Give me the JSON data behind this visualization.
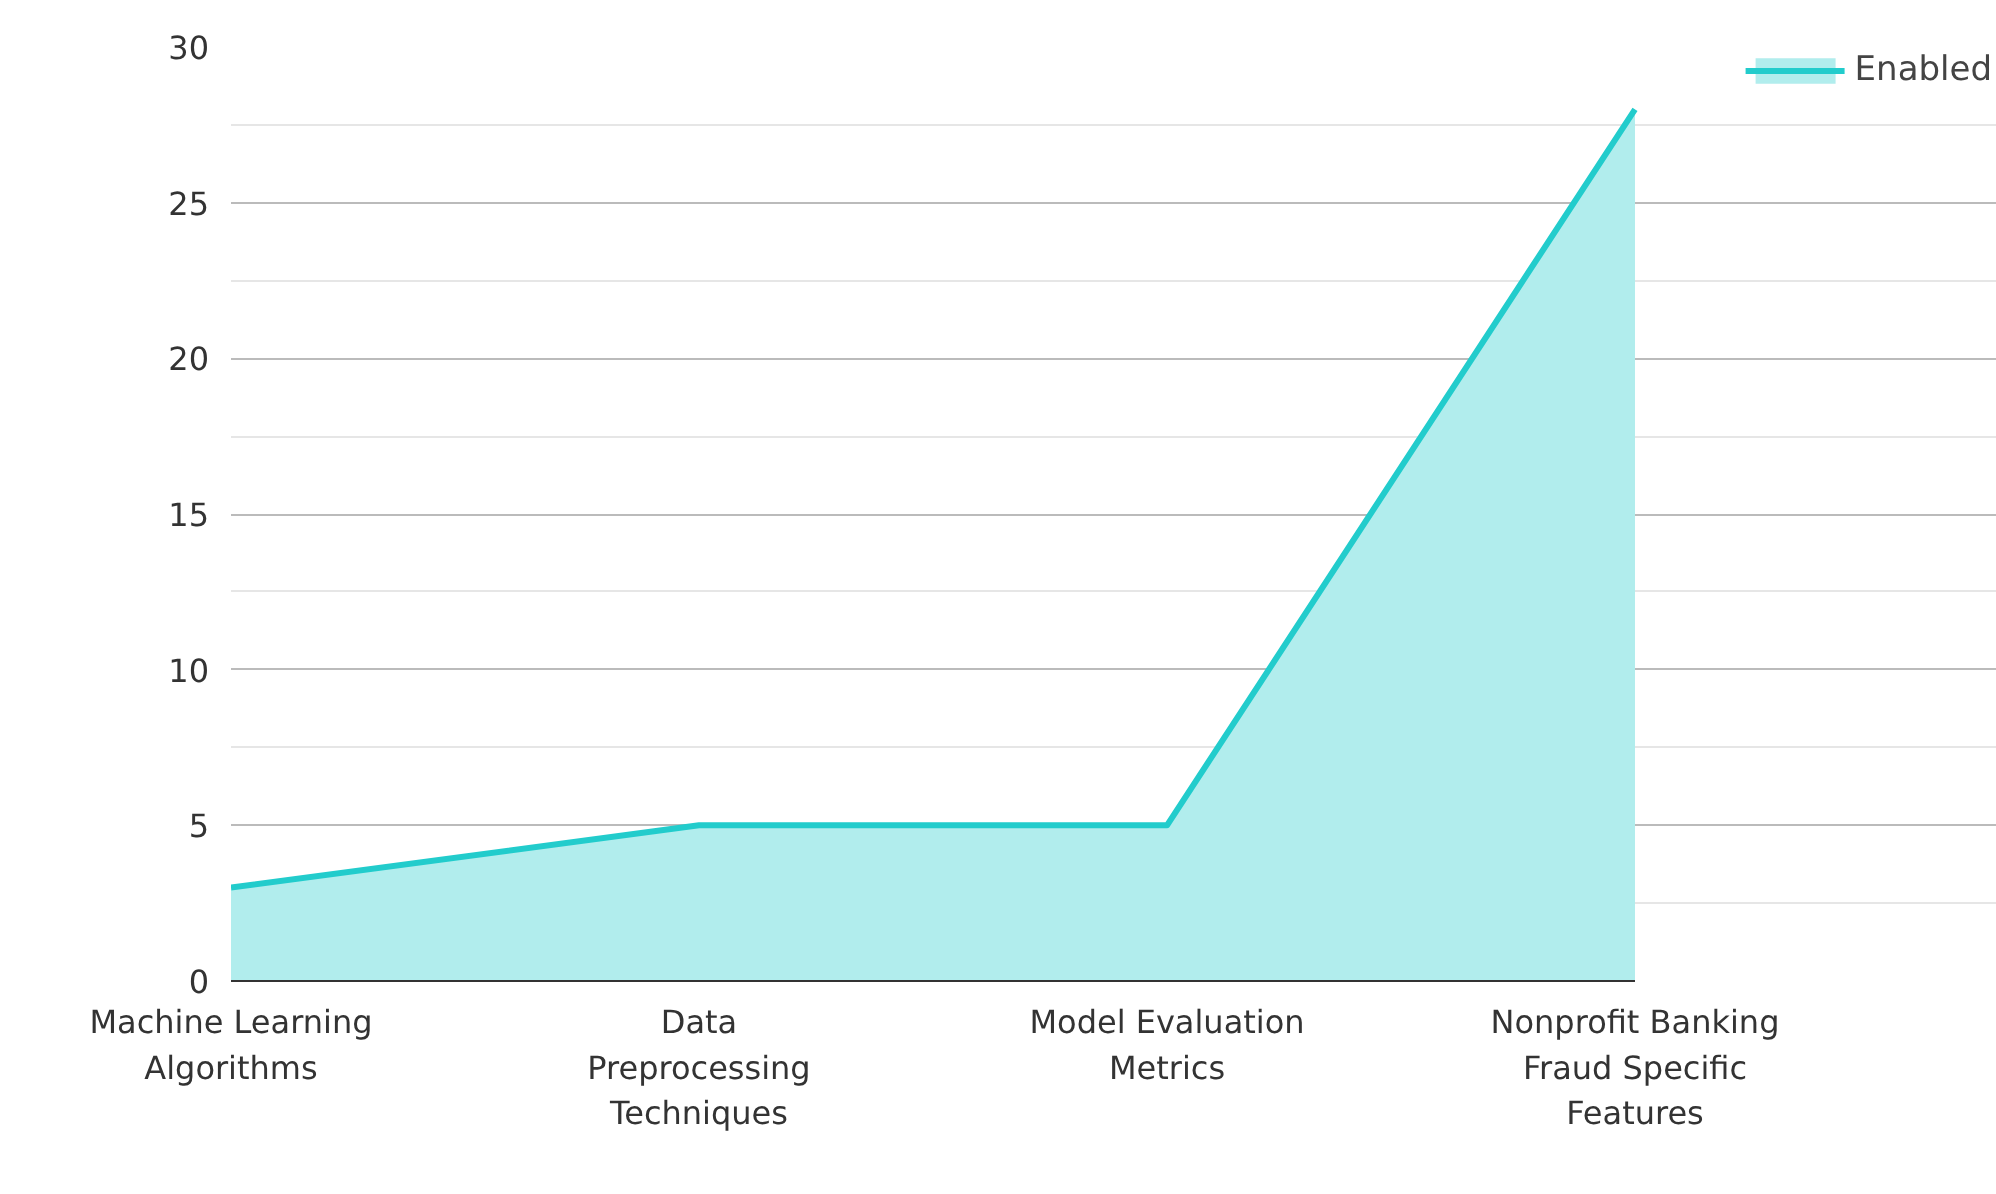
{
  "chart_data": {
    "type": "area",
    "categories": [
      "Machine Learning Algorithms",
      "Data Preprocessing Techniques",
      "Model Evaluation Metrics",
      "Nonprofit Banking Fraud Specific Features"
    ],
    "series": [
      {
        "name": "Enabled",
        "color": "#22cccc",
        "values": [
          3,
          5,
          5,
          28
        ]
      }
    ],
    "ylim": [
      0,
      30
    ],
    "yticks": [
      0,
      5,
      10,
      15,
      20,
      25,
      30
    ],
    "grid": "y",
    "legend": "top right"
  }
}
